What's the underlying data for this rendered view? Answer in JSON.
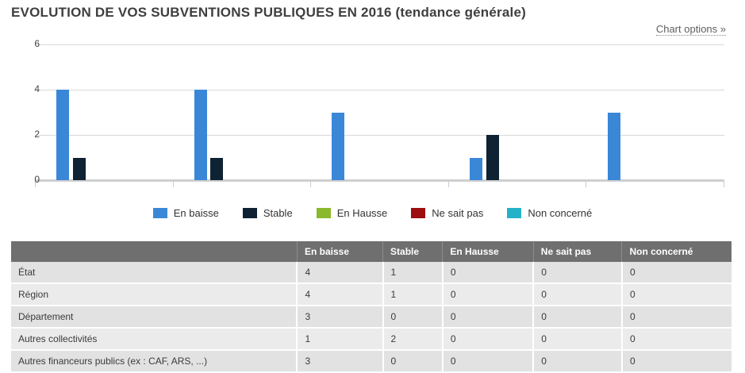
{
  "page": {
    "title": "EVOLUTION DE VOS SUBVENTIONS PUBLIQUES EN 2016 (tendance générale)",
    "chart_options_label": "Chart options »"
  },
  "chart_data": {
    "type": "bar",
    "title": "EVOLUTION DE VOS SUBVENTIONS PUBLIQUES EN 2016 (tendance générale)",
    "categories": [
      "État",
      "Région",
      "Département",
      "Autres collectivités",
      "Autres financeurs publics (ex : CAF, ARS, ...)"
    ],
    "series": [
      {
        "name": "En baisse",
        "color": "#3a87d8",
        "values": [
          4,
          4,
          3,
          1,
          3
        ]
      },
      {
        "name": "Stable",
        "color": "#0e2233",
        "values": [
          1,
          1,
          0,
          2,
          0
        ]
      },
      {
        "name": "En Hausse",
        "color": "#8cb82d",
        "values": [
          0,
          0,
          0,
          0,
          0
        ]
      },
      {
        "name": "Ne sait pas",
        "color": "#9c0e10",
        "values": [
          0,
          0,
          0,
          0,
          0
        ]
      },
      {
        "name": "Non concerné",
        "color": "#25b2c9",
        "values": [
          0,
          0,
          0,
          0,
          0
        ]
      }
    ],
    "ylim": [
      0,
      6
    ],
    "yticks": [
      0,
      2,
      4,
      6
    ],
    "x_tick_labels_visible": false,
    "grid": true,
    "legend_position": "bottom"
  },
  "table": {
    "columns": [
      "",
      "En baisse",
      "Stable",
      "En Hausse",
      "Ne sait pas",
      "Non concerné"
    ],
    "rows": [
      {
        "label": "État",
        "values": [
          "4",
          "1",
          "0",
          "0",
          "0"
        ]
      },
      {
        "label": "Région",
        "values": [
          "4",
          "1",
          "0",
          "0",
          "0"
        ]
      },
      {
        "label": "Département",
        "values": [
          "3",
          "0",
          "0",
          "0",
          "0"
        ]
      },
      {
        "label": "Autres collectivités",
        "values": [
          "1",
          "2",
          "0",
          "0",
          "0"
        ]
      },
      {
        "label": "Autres financeurs publics (ex : CAF, ARS, ...)",
        "values": [
          "3",
          "0",
          "0",
          "0",
          "0"
        ]
      }
    ]
  }
}
